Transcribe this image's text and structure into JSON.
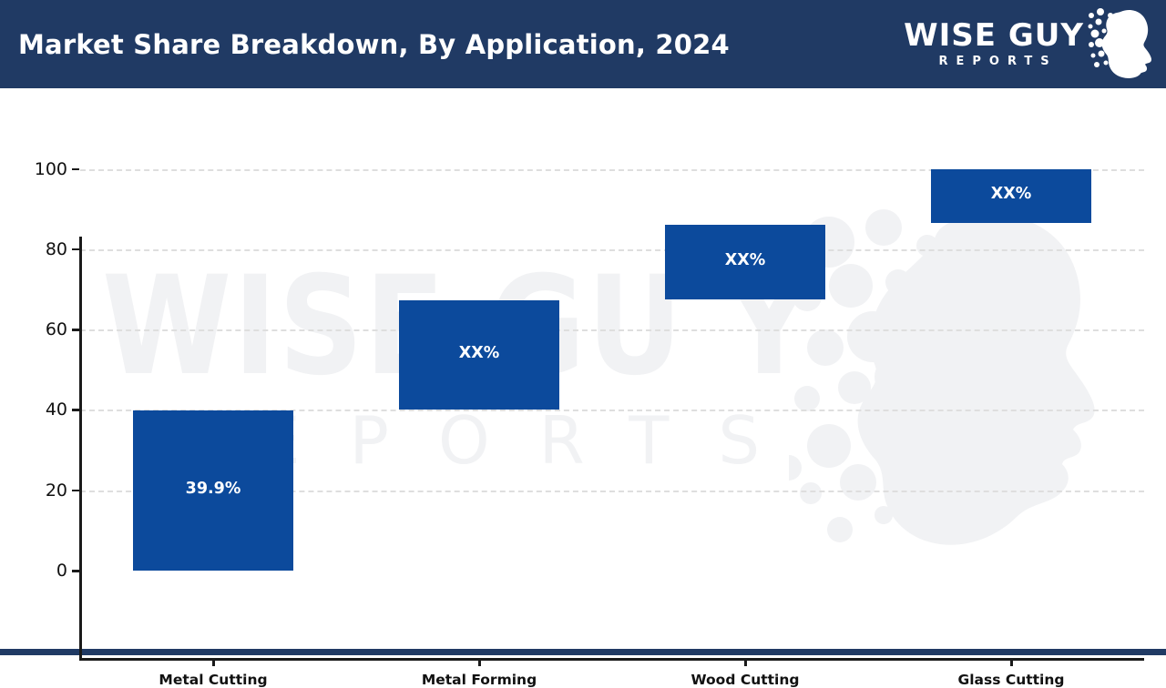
{
  "header": {
    "title": "Market Share Breakdown, By Application, 2024",
    "logo": {
      "line1": "WISE GUY",
      "line2": "REPORTS"
    }
  },
  "watermark": {
    "line1": "WISE GU Y",
    "line2": "REPORTS"
  },
  "chart_data": {
    "type": "bar",
    "subtype": "waterfall",
    "title": "Market Share Breakdown, By Application, 2024",
    "categories": [
      "Metal Cutting",
      "Metal Forming",
      "Wood Cutting",
      "Glass Cutting"
    ],
    "segments": [
      {
        "category": "Metal Cutting",
        "start": 0,
        "end": 39.9,
        "label": "39.9%"
      },
      {
        "category": "Metal Forming",
        "start": 40.1,
        "end": 67.3,
        "label": "XX%"
      },
      {
        "category": "Wood Cutting",
        "start": 67.5,
        "end": 86.1,
        "label": "XX%"
      },
      {
        "category": "Glass Cutting",
        "start": 86.5,
        "end": 100,
        "label": "XX%"
      }
    ],
    "xlabel": "",
    "ylabel": "",
    "yticks": [
      0,
      20,
      40,
      60,
      80,
      100
    ],
    "ylim": [
      0,
      105
    ],
    "grid": "horizontal-dashed",
    "legend": "none",
    "bar_color": "#0c4a9c",
    "value_label_color": "#ffffff"
  },
  "colors": {
    "header_bg": "#203a64",
    "footer_bg": "#203a64",
    "bar": "#0c4a9c",
    "gridline": "#dedede",
    "axis": "#1a1a1a",
    "watermark": "#f1f2f4"
  }
}
